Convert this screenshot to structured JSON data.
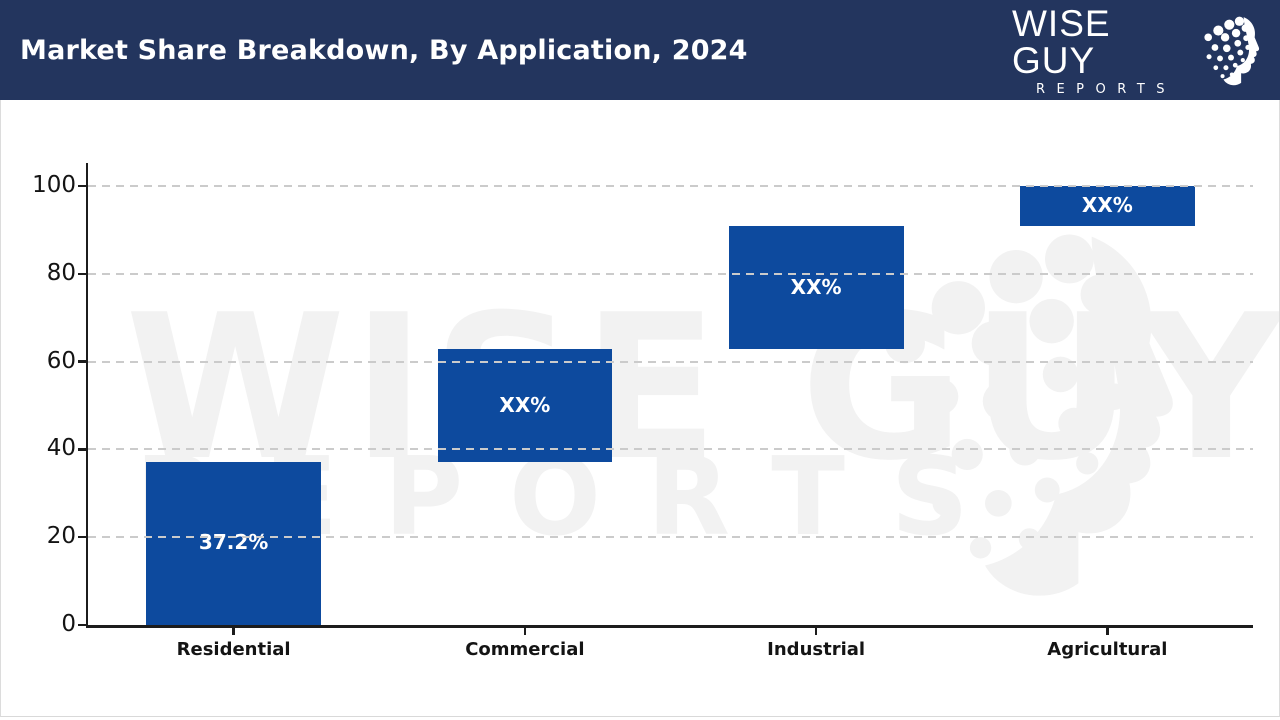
{
  "header": {
    "title": "Market Share Breakdown, By Application, 2024",
    "brand_line1": "WISE GUY",
    "brand_line2": "REPORTS"
  },
  "watermark": {
    "line1": "WISE GUY",
    "line2": "REPORTS"
  },
  "chart_data": {
    "type": "bar",
    "subtype": "waterfall",
    "title": "Market Share Breakdown, By Application, 2024",
    "categories": [
      "Residential",
      "Commercial",
      "Industrial",
      "Agricultural"
    ],
    "segments": [
      {
        "category": "Residential",
        "start": 0,
        "end": 37.2,
        "label": "37.2%"
      },
      {
        "category": "Commercial",
        "start": 37.2,
        "end": 62.8,
        "label": "XX%"
      },
      {
        "category": "Industrial",
        "start": 62.8,
        "end": 90.8,
        "label": "XX%"
      },
      {
        "category": "Agricultural",
        "start": 90.8,
        "end": 100,
        "label": "XX%"
      }
    ],
    "y_ticks": [
      0,
      20,
      40,
      60,
      80,
      100
    ],
    "ylim": [
      0,
      105
    ],
    "xlabel": "",
    "ylabel": "",
    "legend": "none",
    "grid": "horizontal dashed, drawn above bars",
    "bar_color": "#0d4a9e",
    "bar_label_color": "#ffffff"
  },
  "colors": {
    "header_bg": "#23355e",
    "bar": "#0d4a9e",
    "grid": "#cbcbcb",
    "axis": "#1c1c1c",
    "watermark": "#f2f2f2",
    "page_bg": "#ffffff",
    "frame_line": "#d9d9d9"
  }
}
